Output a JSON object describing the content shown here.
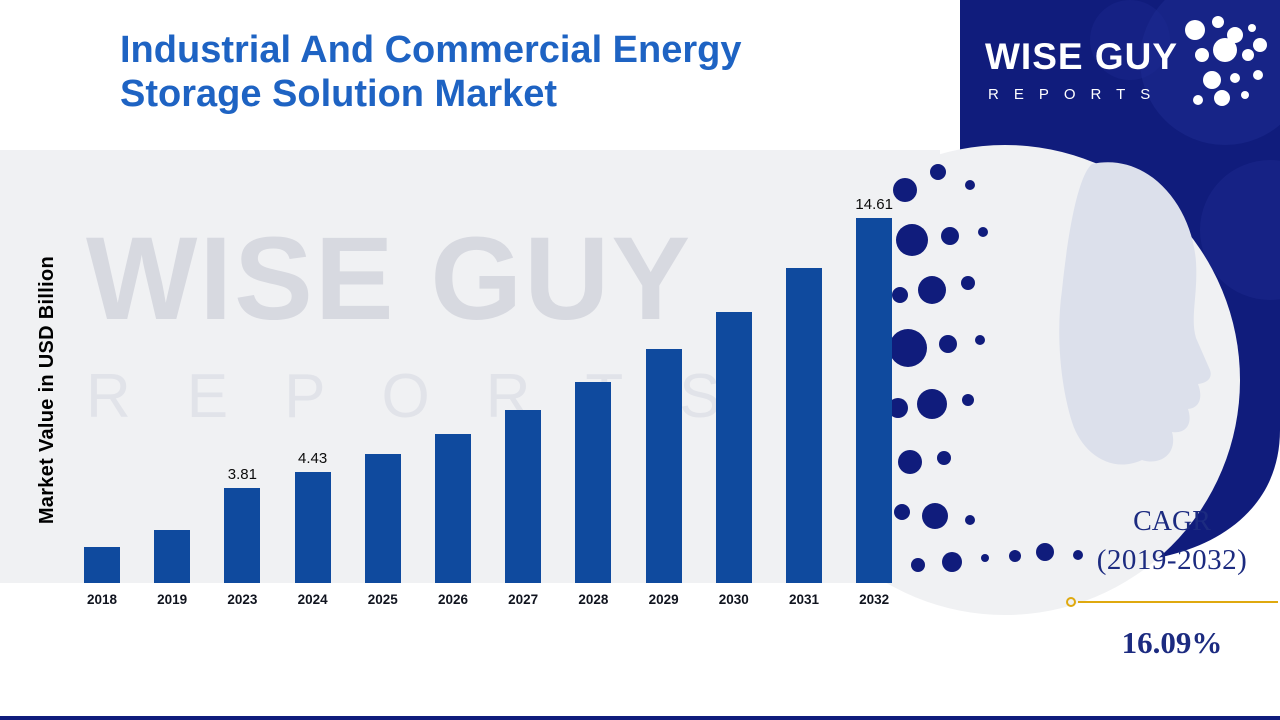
{
  "header": {
    "title": "Industrial And Commercial Energy Storage Solution Market"
  },
  "chart_data": {
    "type": "bar",
    "categories": [
      "2018",
      "2019",
      "2023",
      "2024",
      "2025",
      "2026",
      "2027",
      "2028",
      "2029",
      "2030",
      "2031",
      "2032"
    ],
    "values": [
      1.45,
      2.1,
      3.81,
      4.43,
      5.14,
      5.97,
      6.93,
      8.04,
      9.34,
      10.84,
      12.58,
      14.61
    ],
    "bar_labels": {
      "2023": "3.81",
      "2024": "4.43",
      "2032": "14.61"
    },
    "title": "Industrial And Commercial Energy Storage Solution Market",
    "xlabel": "",
    "ylabel": "Market Value in USD Billion",
    "ylim": [
      0,
      16
    ],
    "grid": false,
    "legend": false,
    "bar_color": "#0f4a9e"
  },
  "watermark": {
    "line1": "WISE GUY",
    "line2": "REPORTS"
  },
  "brand": {
    "logo_line1": "WISE GUY",
    "logo_line2": "REPORTS"
  },
  "cagr": {
    "label": "CAGR",
    "range": "(2019-2032)",
    "value": "16.09%"
  },
  "colors": {
    "title_blue": "#1e63c3",
    "bar_blue": "#0f4a9e",
    "panel_navy": "#101c7c",
    "accent_gold": "#dfa90f",
    "cagr_navy": "#1c2b80",
    "chart_background": "#f0f1f3"
  }
}
